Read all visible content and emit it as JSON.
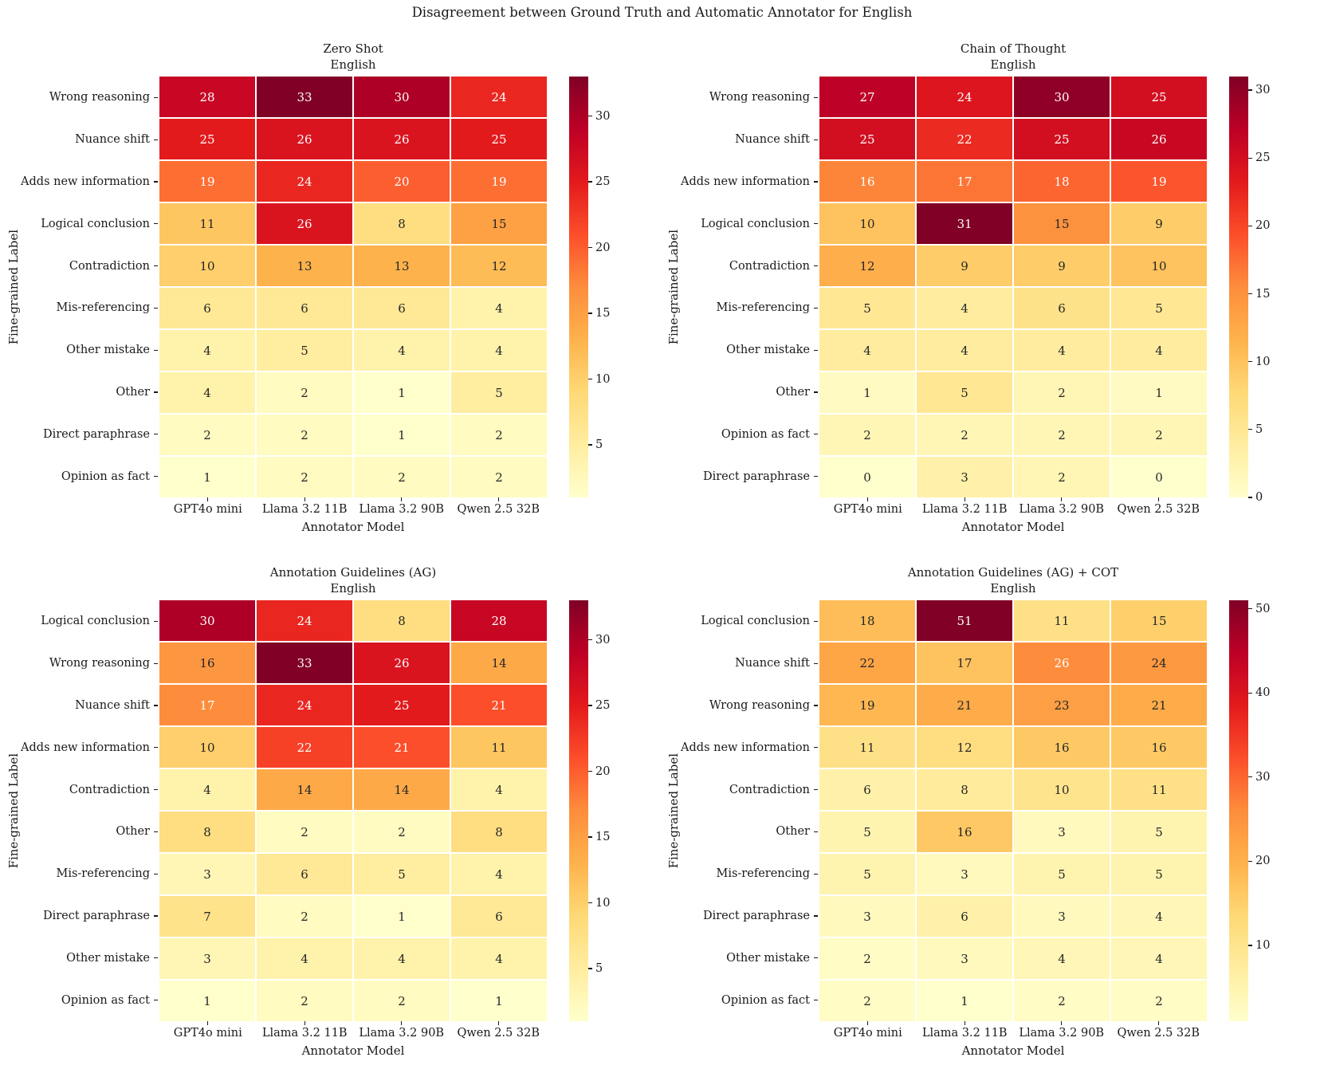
{
  "figure_title": "Disagreement between Ground Truth and Automatic Annotator for English",
  "colors": {
    "background": "#ffffff",
    "text": "#1a1a1a",
    "annotation_dark": "#262626",
    "annotation_light": "#ffffff"
  },
  "colormap": {
    "name": "YlOrRd",
    "stops": [
      "#ffffcc",
      "#ffeda0",
      "#fed976",
      "#feb24c",
      "#fd8d3c",
      "#fc4e2a",
      "#e31a1c",
      "#bd0026",
      "#800026"
    ]
  },
  "chart_data": [
    {
      "type": "heatmap",
      "title": "Zero Shot",
      "subtitle": "English",
      "xlabel": "Annotator Model",
      "ylabel": "Fine-grained Label",
      "columns": [
        "GPT4o mini",
        "Llama 3.2 11B",
        "Llama 3.2 90B",
        "Qwen 2.5 32B"
      ],
      "rows": [
        "Wrong reasoning",
        "Nuance shift",
        "Adds new information",
        "Logical conclusion",
        "Contradiction",
        "Mis-referencing",
        "Other mistake",
        "Other",
        "Direct paraphrase",
        "Opinion as fact"
      ],
      "values": [
        [
          28,
          33,
          30,
          24
        ],
        [
          25,
          26,
          26,
          25
        ],
        [
          19,
          24,
          20,
          19
        ],
        [
          11,
          26,
          8,
          15
        ],
        [
          10,
          13,
          13,
          12
        ],
        [
          6,
          6,
          6,
          4
        ],
        [
          4,
          5,
          4,
          4
        ],
        [
          4,
          2,
          1,
          5
        ],
        [
          2,
          2,
          1,
          2
        ],
        [
          1,
          2,
          2,
          2
        ]
      ],
      "vmin": 1,
      "vmax": 33,
      "colorbar_ticks": [
        5,
        10,
        15,
        20,
        25,
        30
      ]
    },
    {
      "type": "heatmap",
      "title": "Chain of Thought",
      "subtitle": "English",
      "xlabel": "Annotator Model",
      "ylabel": "Fine-grained Label",
      "columns": [
        "GPT4o mini",
        "Llama 3.2 11B",
        "Llama 3.2 90B",
        "Qwen 2.5 32B"
      ],
      "rows": [
        "Wrong reasoning",
        "Nuance shift",
        "Adds new information",
        "Logical conclusion",
        "Contradiction",
        "Mis-referencing",
        "Other mistake",
        "Other",
        "Opinion as fact",
        "Direct paraphrase"
      ],
      "values": [
        [
          27,
          24,
          30,
          25
        ],
        [
          25,
          22,
          25,
          26
        ],
        [
          16,
          17,
          18,
          19
        ],
        [
          10,
          31,
          15,
          9
        ],
        [
          12,
          9,
          9,
          10
        ],
        [
          5,
          4,
          6,
          5
        ],
        [
          4,
          4,
          4,
          4
        ],
        [
          1,
          5,
          2,
          1
        ],
        [
          2,
          2,
          2,
          2
        ],
        [
          0,
          3,
          2,
          0
        ]
      ],
      "vmin": 0,
      "vmax": 31,
      "colorbar_ticks": [
        0,
        5,
        10,
        15,
        20,
        25,
        30
      ]
    },
    {
      "type": "heatmap",
      "title": "Annotation Guidelines (AG)",
      "subtitle": "English",
      "xlabel": "Annotator Model",
      "ylabel": "Fine-grained Label",
      "columns": [
        "GPT4o mini",
        "Llama 3.2 11B",
        "Llama 3.2 90B",
        "Qwen 2.5 32B"
      ],
      "rows": [
        "Logical conclusion",
        "Wrong reasoning",
        "Nuance shift",
        "Adds new information",
        "Contradiction",
        "Other",
        "Mis-referencing",
        "Direct paraphrase",
        "Other mistake",
        "Opinion as fact"
      ],
      "values": [
        [
          30,
          24,
          8,
          28
        ],
        [
          16,
          33,
          26,
          14
        ],
        [
          17,
          24,
          25,
          21
        ],
        [
          10,
          22,
          21,
          11
        ],
        [
          4,
          14,
          14,
          4
        ],
        [
          8,
          2,
          2,
          8
        ],
        [
          3,
          6,
          5,
          4
        ],
        [
          7,
          2,
          1,
          6
        ],
        [
          3,
          4,
          4,
          4
        ],
        [
          1,
          2,
          2,
          1
        ]
      ],
      "vmin": 1,
      "vmax": 33,
      "colorbar_ticks": [
        5,
        10,
        15,
        20,
        25,
        30
      ]
    },
    {
      "type": "heatmap",
      "title": "Annotation Guidelines (AG) + COT",
      "subtitle": "English",
      "xlabel": "Annotator Model",
      "ylabel": "Fine-grained Label",
      "columns": [
        "GPT4o mini",
        "Llama 3.2 11B",
        "Llama 3.2 90B",
        "Qwen 2.5 32B"
      ],
      "rows": [
        "Logical conclusion",
        "Nuance shift",
        "Wrong reasoning",
        "Adds new information",
        "Contradiction",
        "Other",
        "Mis-referencing",
        "Direct paraphrase",
        "Other mistake",
        "Opinion as fact"
      ],
      "values": [
        [
          18,
          51,
          11,
          15
        ],
        [
          22,
          17,
          26,
          24
        ],
        [
          19,
          21,
          23,
          21
        ],
        [
          11,
          12,
          16,
          16
        ],
        [
          6,
          8,
          10,
          11
        ],
        [
          5,
          16,
          3,
          5
        ],
        [
          5,
          3,
          5,
          5
        ],
        [
          3,
          6,
          3,
          4
        ],
        [
          2,
          3,
          4,
          4
        ],
        [
          2,
          1,
          2,
          2
        ]
      ],
      "vmin": 1,
      "vmax": 51,
      "colorbar_ticks": [
        10,
        20,
        30,
        40,
        50
      ]
    }
  ]
}
